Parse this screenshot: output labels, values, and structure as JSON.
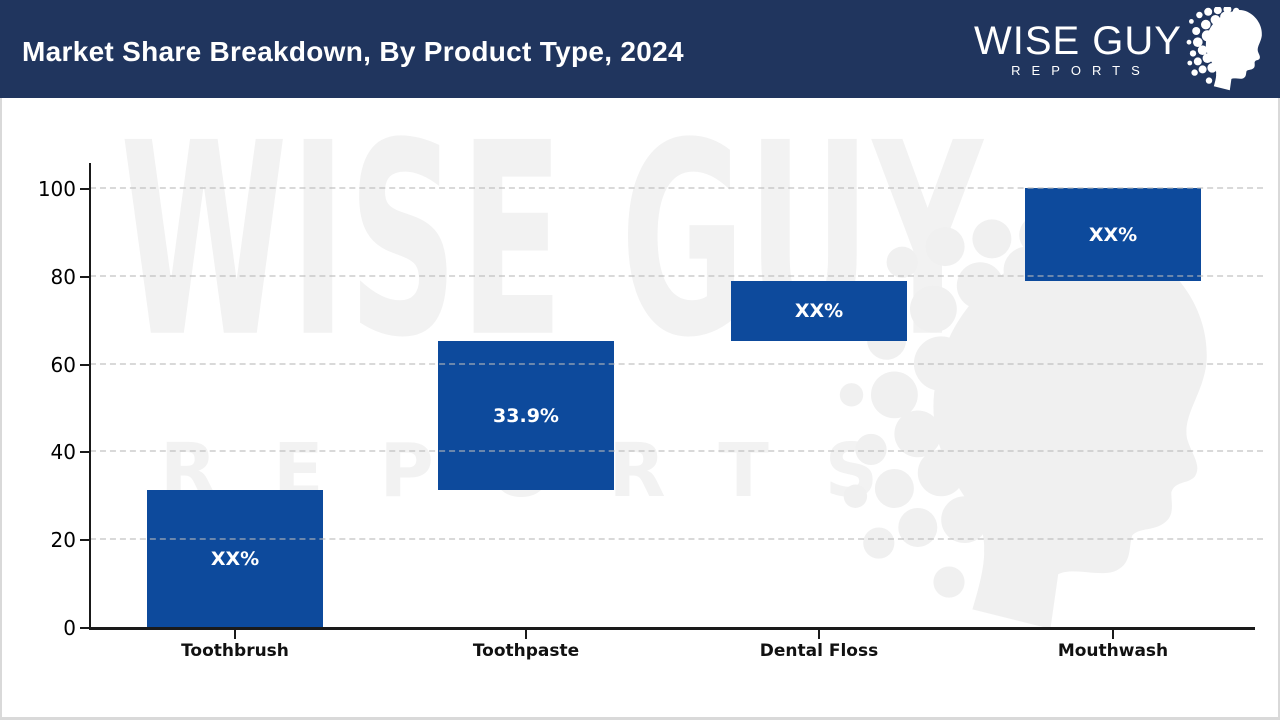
{
  "header": {
    "title": "Market Share Breakdown, By Product Type, 2024",
    "background_color": "#20355e",
    "logo": {
      "line1": "WISE GUY",
      "line2": "REPORTS"
    }
  },
  "watermark": {
    "line1": "WISE GUY",
    "line2": "REPORTS"
  },
  "chart_data": {
    "type": "bar",
    "subtype": "floating-waterfall",
    "title": "Market Share Breakdown, By Product Type, 2024",
    "categories": [
      "Toothbrush",
      "Toothpaste",
      "Dental Floss",
      "Mouthwash"
    ],
    "segments": [
      {
        "category": "Toothbrush",
        "start": 0,
        "end": 31.2,
        "label": "XX%"
      },
      {
        "category": "Toothpaste",
        "start": 31.2,
        "end": 65.1,
        "label": "33.9%"
      },
      {
        "category": "Dental Floss",
        "start": 65.1,
        "end": 78.8,
        "label": "XX%"
      },
      {
        "category": "Mouthwash",
        "start": 78.8,
        "end": 100,
        "label": "XX%"
      }
    ],
    "yticks": [
      0,
      20,
      40,
      60,
      80,
      100
    ],
    "ylim": [
      0,
      106
    ],
    "xlabel": "",
    "ylabel": "",
    "grid": "horizontal dashed, drawn over bars",
    "legend": "none",
    "bar_color": "#0d4a9c",
    "bar_label_color": "#ffffff",
    "axis_color": "#1a1a1a"
  }
}
